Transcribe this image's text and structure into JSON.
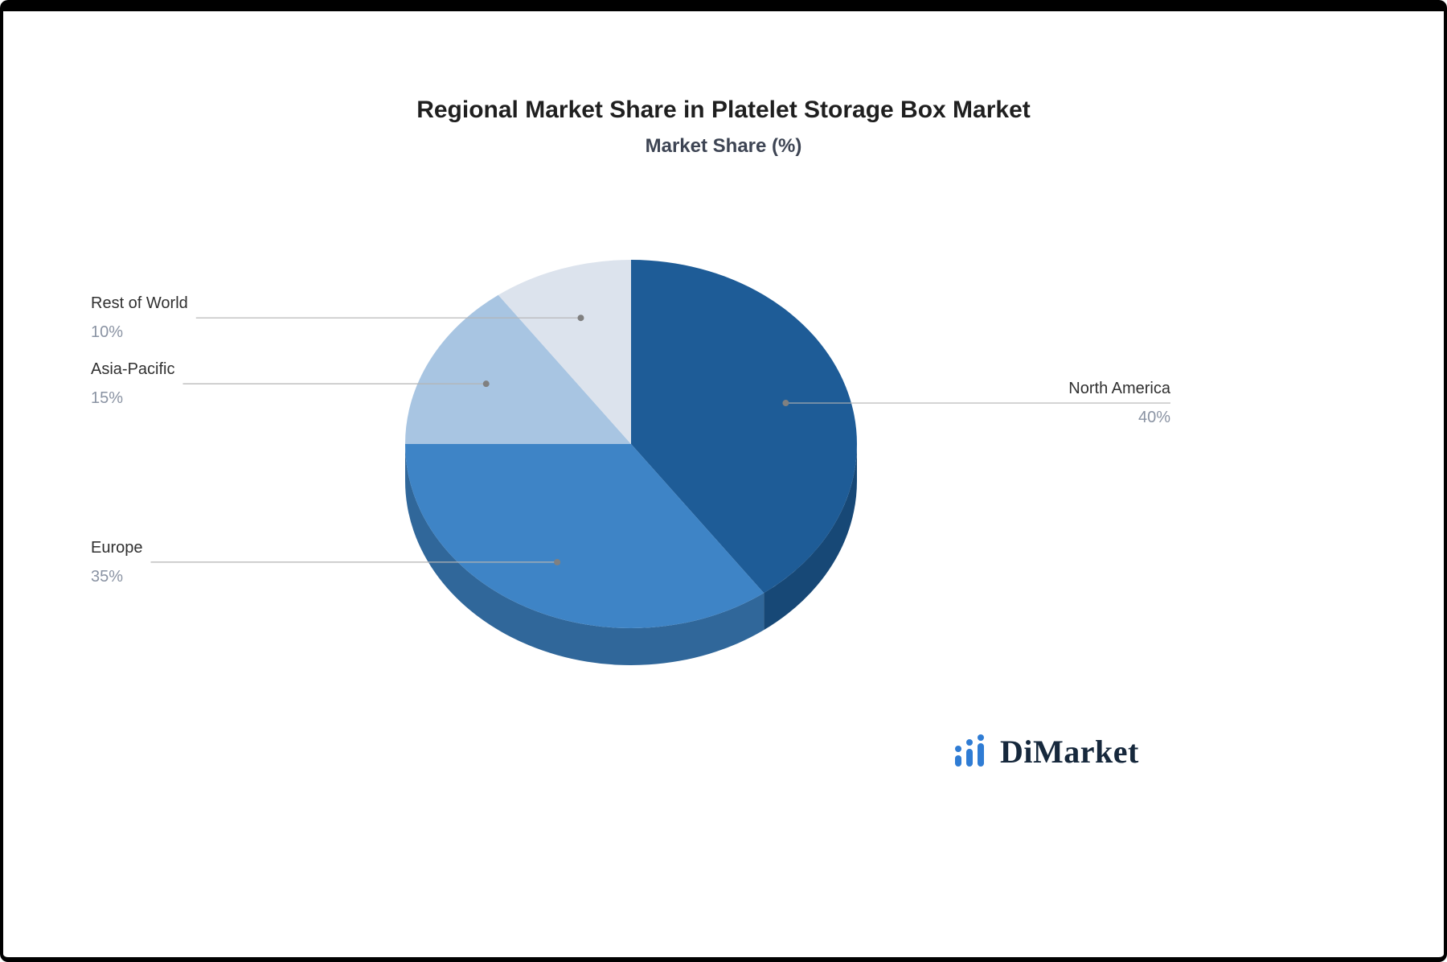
{
  "chart_data": {
    "type": "pie",
    "style": "3d",
    "title": "Regional Market Share in Platelet Storage Box Market",
    "subtitle": "Market Share (%)",
    "unit": "%",
    "direction": "clockwise",
    "start_angle_deg": 0,
    "legend_position": "callout-labels",
    "segments": [
      {
        "label": "North America",
        "value": 40,
        "display": "40%",
        "color": "#1e5c97"
      },
      {
        "label": "Europe",
        "value": 35,
        "display": "35%",
        "color": "#3e84c6"
      },
      {
        "label": "Asia-Pacific",
        "value": 15,
        "display": "15%",
        "color": "#a8c5e2"
      },
      {
        "label": "Rest of World",
        "value": 10,
        "display": "10%",
        "color": "#dce3ed"
      }
    ]
  },
  "branding": {
    "logo_text": "DiMarket"
  },
  "colors": {
    "leader_line": "#b3b3b3",
    "anchor_dot": "#808080",
    "label_text": "#303030",
    "pct_text": "#8a93a3",
    "logo_accent": "#2f7cd4",
    "logo_text_color": "#16283c"
  }
}
